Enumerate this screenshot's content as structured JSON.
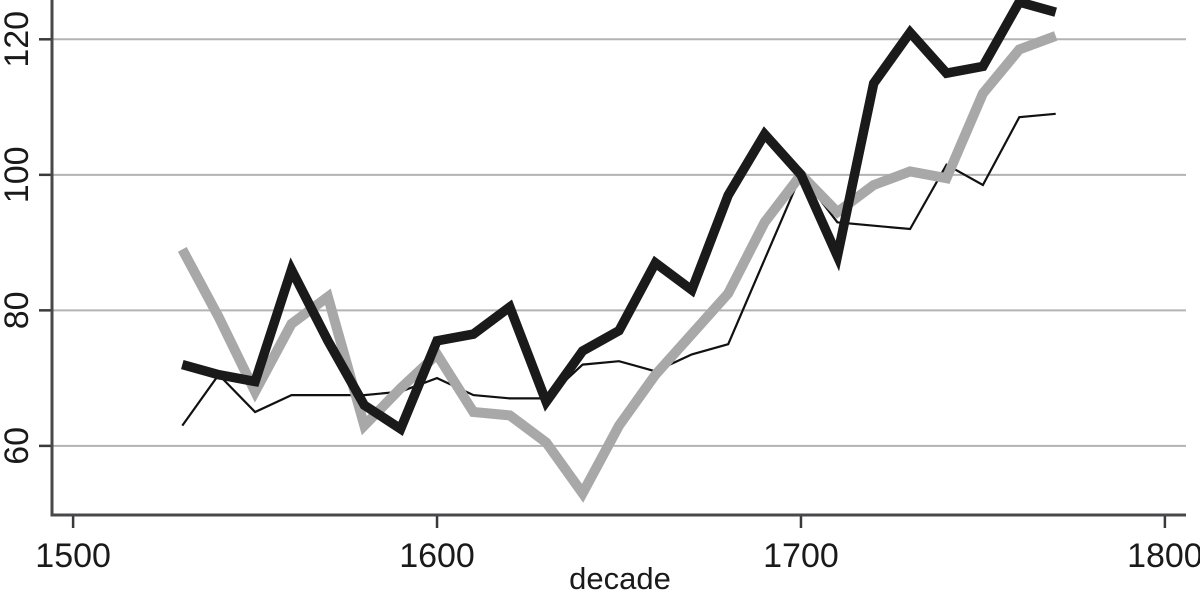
{
  "chart_data": {
    "type": "line",
    "title": "",
    "xlabel": "decade",
    "ylabel": "",
    "x_ticks": [
      1500,
      1600,
      1700,
      1800
    ],
    "y_ticks": [
      60,
      80,
      100,
      120
    ],
    "xlim": [
      1494.2,
      1805.8
    ],
    "ylim": [
      49.8,
      125.8
    ],
    "grid": "horizontal-only",
    "legend_position": "none",
    "x": [
      1530,
      1540,
      1550,
      1560,
      1570,
      1580,
      1590,
      1600,
      1610,
      1620,
      1630,
      1640,
      1650,
      1660,
      1670,
      1680,
      1690,
      1700,
      1710,
      1720,
      1730,
      1740,
      1750,
      1760,
      1770
    ],
    "series": [
      {
        "name": "thin_black",
        "label": "thin black line",
        "color": "#111111",
        "stroke_width": 2.2,
        "values": [
          63,
          70.5,
          65,
          67.5,
          67.5,
          67.5,
          68,
          70,
          67.5,
          67,
          67,
          72,
          72.5,
          71,
          73.5,
          75,
          87.5,
          100,
          93,
          92.5,
          92,
          101.5,
          98.5,
          108.5,
          109
        ]
      },
      {
        "name": "gray",
        "label": "thick gray line",
        "color": "#a8a8a8",
        "stroke_width": 10,
        "values": [
          89,
          79,
          68,
          78,
          82,
          63,
          68.5,
          73.5,
          65,
          64.5,
          60.5,
          53,
          63,
          70.5,
          76.5,
          82.5,
          93,
          100,
          94.5,
          98.5,
          100.5,
          99.5,
          112,
          118.5,
          120.5
        ]
      },
      {
        "name": "bold_black",
        "label": "thick black line",
        "color": "#1a1a1a",
        "stroke_width": 9.5,
        "values": [
          72,
          70.5,
          69.5,
          86,
          75.5,
          66,
          62.5,
          75.5,
          76.5,
          80.5,
          66.5,
          74,
          77,
          87,
          83,
          97,
          106,
          100,
          88,
          113.5,
          121,
          115,
          116,
          125.5,
          124
        ]
      }
    ],
    "colors": {
      "gridline": "#b3b3b3",
      "axis": "#48484a",
      "tick": "#3a3a3c",
      "text": "#1a1a1a",
      "background": "#ffffff"
    }
  }
}
